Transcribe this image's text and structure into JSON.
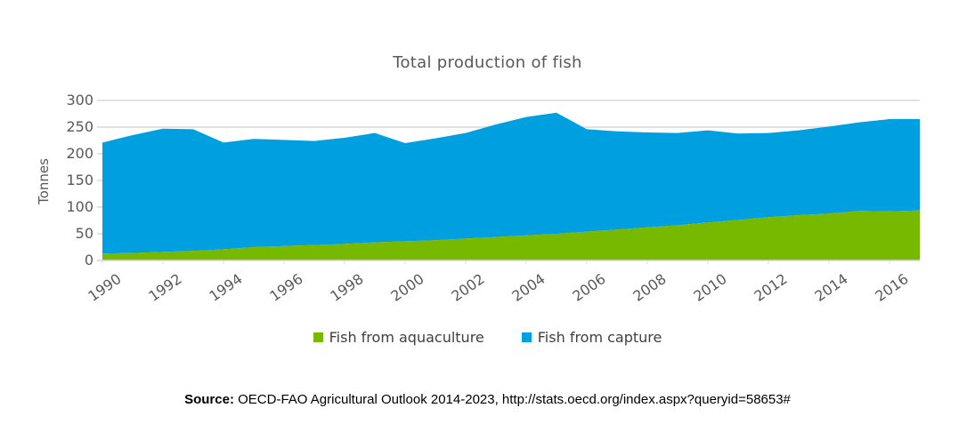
{
  "title": "Total production of fish",
  "y_axis": {
    "label": "Tonnes"
  },
  "legend": {
    "items": [
      {
        "label": "Fish from aquaculture",
        "color": "#77b800"
      },
      {
        "label": "Fish from capture",
        "color": "#009fe0"
      }
    ]
  },
  "source": {
    "prefix": "Source:",
    "text": " OECD-FAO Agricultural Outlook 2014-2023, http://stats.oecd.org/index.aspx?queryid=58653#"
  },
  "colors": {
    "aquaculture": "#77b800",
    "capture": "#009fe0",
    "gridline": "#d9d9d9",
    "axis_text": "#595959"
  },
  "chart_data": {
    "type": "area",
    "stacked": true,
    "title": "Total production of fish",
    "xlabel": "",
    "ylabel": "Tonnes",
    "ylim": [
      0,
      300
    ],
    "y_ticks": [
      0,
      50,
      100,
      150,
      200,
      250,
      300
    ],
    "grid": true,
    "legend_position": "bottom",
    "x": [
      1990,
      1991,
      1992,
      1993,
      1994,
      1995,
      1996,
      1997,
      1998,
      1999,
      2000,
      2001,
      2002,
      2003,
      2004,
      2005,
      2006,
      2007,
      2008,
      2009,
      2010,
      2011,
      2012,
      2013,
      2014,
      2015,
      2016,
      2017
    ],
    "x_tick_labels": [
      "1990",
      "1992",
      "1994",
      "1996",
      "1998",
      "2000",
      "2002",
      "2004",
      "2006",
      "2008",
      "2010",
      "2012",
      "2014",
      "2016"
    ],
    "series": [
      {
        "name": "Fish from aquaculture",
        "color": "#77b800",
        "values": [
          13,
          14,
          16,
          18,
          21,
          25,
          27,
          29,
          31,
          34,
          36,
          38,
          41,
          44,
          47,
          50,
          54,
          58,
          62,
          66,
          71,
          76,
          81,
          85,
          88,
          93,
          92,
          94
        ]
      },
      {
        "name": "Fish from capture",
        "color": "#009fe0",
        "values": [
          208,
          221,
          231,
          228,
          200,
          203,
          199,
          195,
          199,
          205,
          184,
          191,
          198,
          211,
          222,
          227,
          192,
          184,
          178,
          173,
          173,
          162,
          158,
          159,
          163,
          166,
          173,
          171
        ]
      }
    ]
  }
}
